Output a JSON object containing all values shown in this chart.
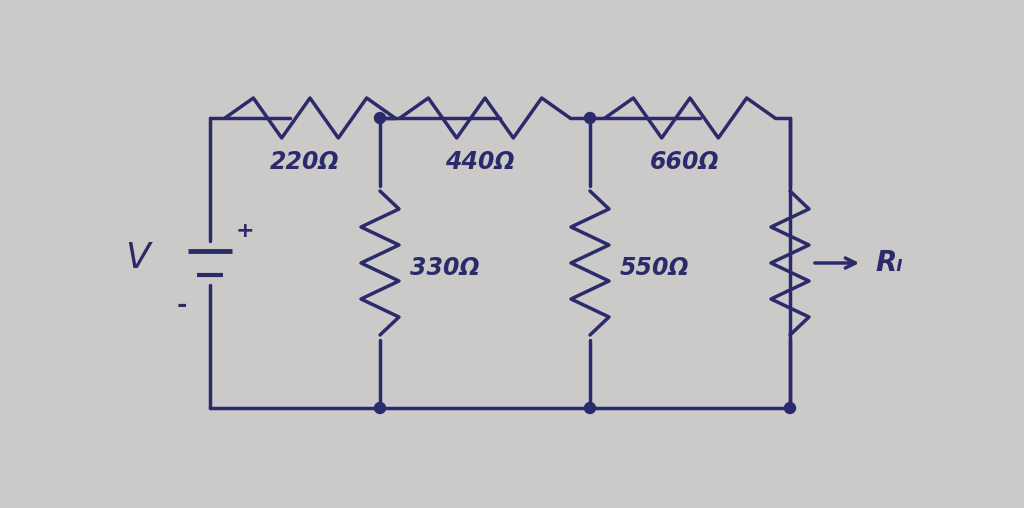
{
  "bg_color": "#cccac8",
  "line_color": "#2b2b6b",
  "line_width": 2.5,
  "font_size_labels": 17,
  "font_size_V": 26,
  "font_size_RL": 20,
  "resistor_labels": {
    "R1": "220Ω",
    "R2": "440Ω",
    "R3": "660Ω",
    "R4": "330Ω",
    "R5": "550Ω",
    "RL": "Rₗ"
  },
  "V_label": "V",
  "plus_label": "+",
  "minus_label": "-"
}
